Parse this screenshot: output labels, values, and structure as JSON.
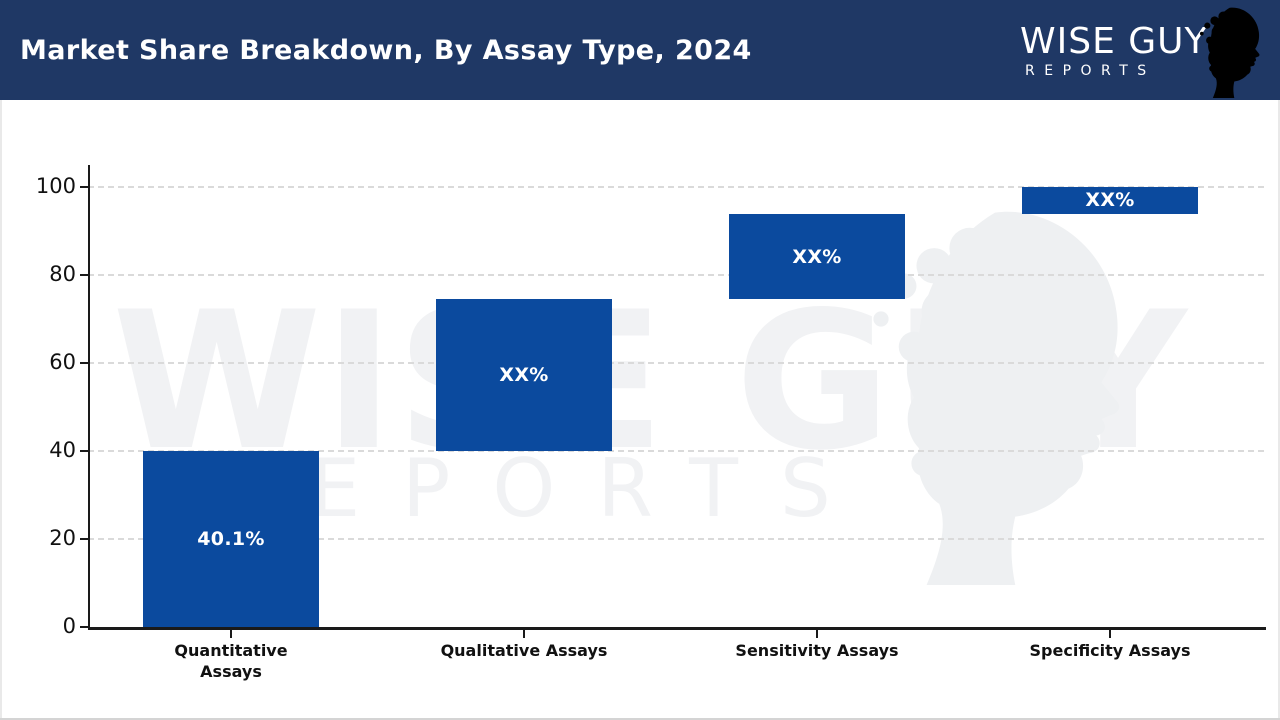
{
  "header": {
    "title": "Market Share Breakdown, By Assay Type, 2024",
    "logo": {
      "line1": "WISE GUY",
      "line2": "REPORTS"
    }
  },
  "watermark": {
    "line1": "WISE GUY",
    "line2": "REPORTS"
  },
  "colors": {
    "header_bg": "#1f3865",
    "bar_blue": "#0b4a9e",
    "bar_label": "#ffffff",
    "grid": "#dadada",
    "axis": "#1a1a1a",
    "watermark": "#f1f2f4",
    "watermark_face": "#eef0f2"
  },
  "chart_data": {
    "type": "bar",
    "subtype": "waterfall",
    "title": "Market Share Breakdown, By Assay Type, 2024",
    "categories": [
      "Quantitative Assays",
      "Qualitative Assays",
      "Sensitivity Assays",
      "Specificity Assays"
    ],
    "category_lines": [
      [
        "Quantitative",
        "Assays"
      ],
      [
        "Qualitative Assays"
      ],
      [
        "Sensitivity Assays"
      ],
      [
        "Specificity Assays"
      ]
    ],
    "segments": [
      {
        "category": "Quantitative Assays",
        "start": 0,
        "end": 40.1,
        "label": "40.1%"
      },
      {
        "category": "Qualitative Assays",
        "start": 40.1,
        "end": 74.5,
        "label": "XX%"
      },
      {
        "category": "Sensitivity Assays",
        "start": 74.5,
        "end": 93.9,
        "label": "XX%"
      },
      {
        "category": "Specificity Assays",
        "start": 93.9,
        "end": 100,
        "label": "XX%"
      }
    ],
    "yticks": [
      0,
      20,
      40,
      60,
      80,
      100
    ],
    "ylim": [
      0,
      105
    ],
    "grid": "horizontal dashed",
    "legend": "none"
  }
}
